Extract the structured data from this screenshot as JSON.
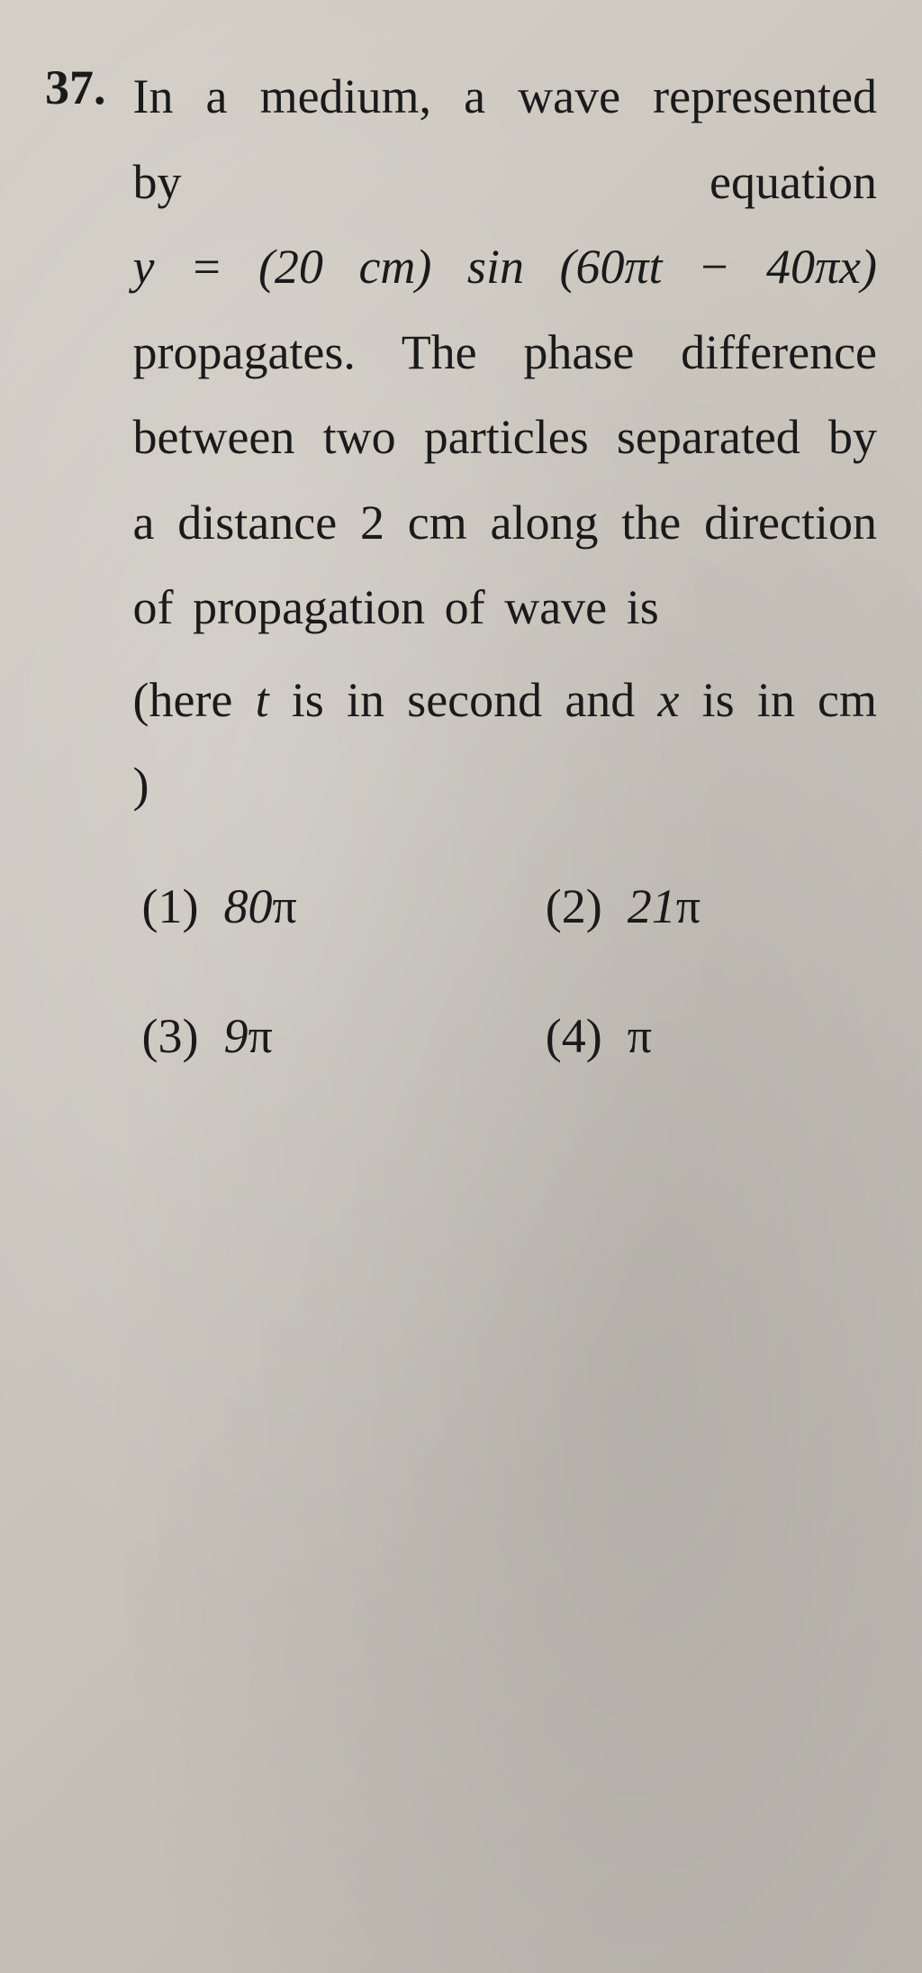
{
  "question": {
    "number": "37.",
    "line1": "In a medium, a wave represented by equation",
    "equation": "y = (20 cm) sin (60πt − 40πx)",
    "line2_cont": " propagates. The phase",
    "line3": "difference between two particles separated by a",
    "line4": "distance 2 cm along the direction of propagation of",
    "line5": "wave is",
    "note_open": "(here ",
    "note_var1": "t",
    "note_mid1": " is in second and ",
    "note_var2": "x",
    "note_mid2": " is in cm )"
  },
  "options": [
    {
      "num": "(1)",
      "val": "80",
      "sym": "π"
    },
    {
      "num": "(2)",
      "val": "21",
      "sym": "π"
    },
    {
      "num": "(3)",
      "val": "9",
      "sym": "π"
    },
    {
      "num": "(4)",
      "val": "",
      "sym": "π"
    }
  ],
  "style": {
    "bg_color": "#cac6be",
    "text_color": "#1a1a1a",
    "font_size_pt": 54,
    "line_height": 1.75
  }
}
